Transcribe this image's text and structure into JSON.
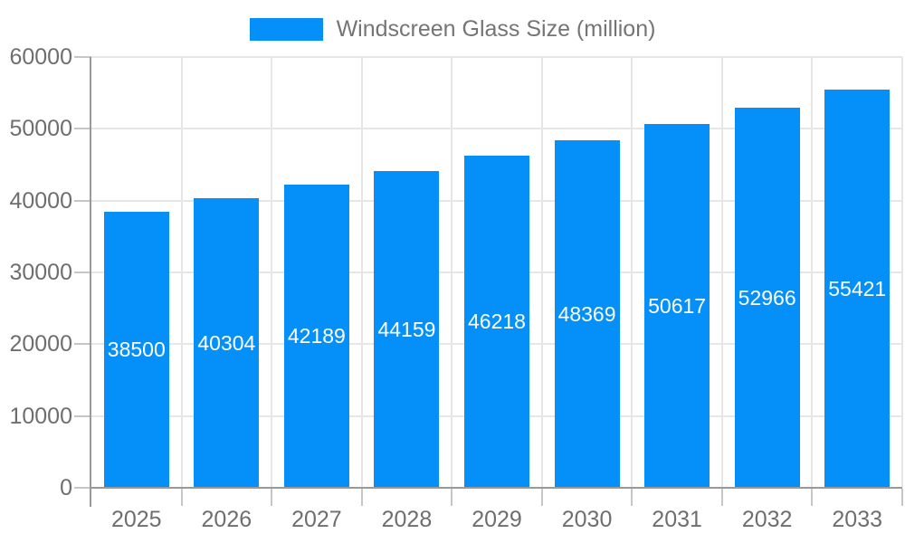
{
  "legend": {
    "label": "Windscreen Glass Size (million)"
  },
  "colors": {
    "bar": "#0590f9",
    "grid": "#e6e6e6",
    "axis": "#999999",
    "tick": "#c6c6c6",
    "axis_label_text": "#6e6e6e",
    "legend_text": "#757575",
    "annotation_text": "#ffffff",
    "background": "#ffffff"
  },
  "chart_data": {
    "type": "bar",
    "title": "",
    "categories": [
      "2025",
      "2026",
      "2027",
      "2028",
      "2029",
      "2030",
      "2031",
      "2032",
      "2033"
    ],
    "series": [
      {
        "name": "Windscreen Glass Size (million)",
        "values": [
          38500,
          40304,
          42189,
          44159,
          46218,
          48369,
          50617,
          52966,
          55421
        ]
      }
    ],
    "annotations": [
      "38500",
      "40304",
      "42189",
      "44159",
      "46218",
      "48369",
      "50617",
      "52966",
      "55421"
    ],
    "xlabel": "",
    "ylabel": "",
    "ylim": [
      0,
      60000
    ],
    "ytick_step": 10000,
    "ytick_labels": [
      "0",
      "10000",
      "20000",
      "30000",
      "40000",
      "50000",
      "60000"
    ],
    "grid": true,
    "legend_position": "top-center",
    "annotation_position": "inside-center"
  }
}
